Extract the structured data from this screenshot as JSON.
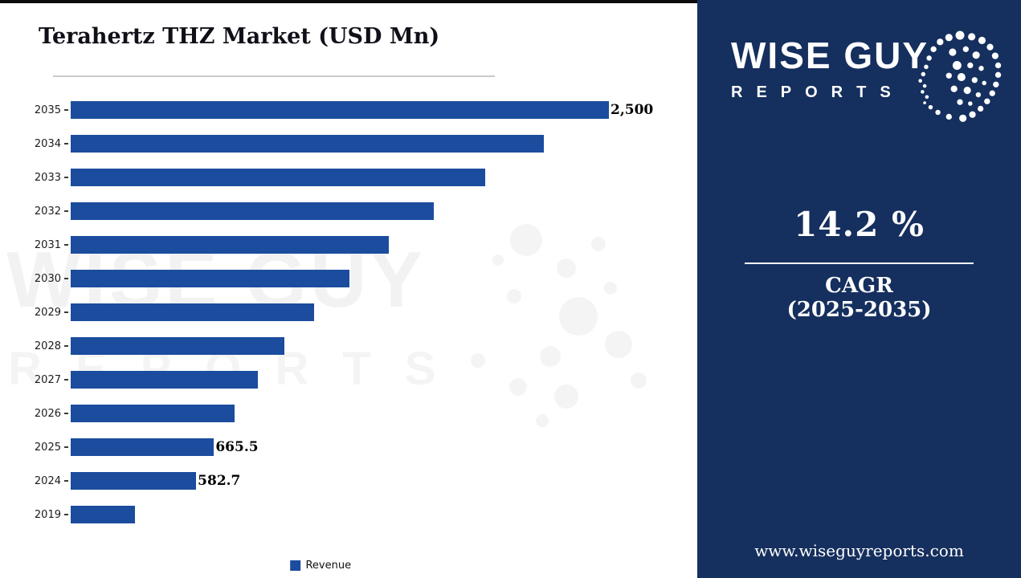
{
  "chart_data": {
    "type": "bar",
    "orientation": "horizontal",
    "title": "Terahertz THZ Market (USD Mn)",
    "categories": [
      "2035",
      "2034",
      "2033",
      "2032",
      "2031",
      "2030",
      "2029",
      "2028",
      "2027",
      "2026",
      "2025",
      "2024",
      "2019"
    ],
    "values": [
      2500,
      2199,
      1925,
      1686,
      1476,
      1293,
      1132,
      991,
      868,
      760,
      665.5,
      582.7,
      300
    ],
    "bar_labels": [
      "2,500",
      "",
      "",
      "",
      "",
      "",
      "",
      "",
      "",
      "",
      "665.5",
      "582.7",
      ""
    ],
    "xlim": [
      0,
      2500
    ],
    "bar_color": "#1b4c9e",
    "grid": false,
    "legend_position": "bottom",
    "legend": [
      {
        "label": "Revenue",
        "color": "#1b4c9e"
      }
    ]
  },
  "watermark": {
    "line1": "WISE GUY",
    "line2": "REPORTS"
  },
  "panel": {
    "bg_color": "#152f5e",
    "logo_line1": "WISE GUY",
    "logo_line2": "REPORTS",
    "cagr_value": "14.2 %",
    "cagr_label": "CAGR",
    "cagr_period": "(2025-2035)",
    "website": "www.wiseguyreports.com"
  }
}
